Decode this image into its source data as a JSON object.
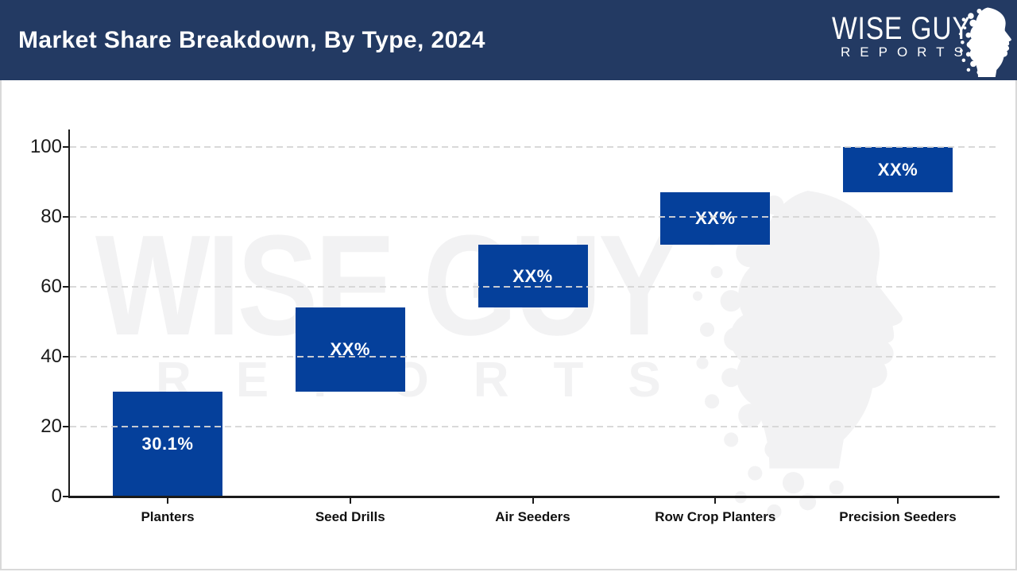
{
  "header": {
    "title": "Market Share Breakdown, By Type, 2024",
    "logo": {
      "brand_line1": "WISE GUY",
      "brand_line2": "REPORTS"
    }
  },
  "watermark": {
    "line1": "WISE GUY",
    "line2": "REPORTS"
  },
  "chart_data": {
    "type": "bar",
    "subtype": "waterfall",
    "title": "Market Share Breakdown, By Type, 2024",
    "categories": [
      "Planters",
      "Seed Drills",
      "Air Seeders",
      "Row Crop Planters",
      "Precision Seeders"
    ],
    "segments": [
      {
        "category": "Planters",
        "start": 0,
        "end": 30.1,
        "label": "30.1%"
      },
      {
        "category": "Seed Drills",
        "start": 30.1,
        "end": 54,
        "label": "XX%"
      },
      {
        "category": "Air Seeders",
        "start": 54,
        "end": 72,
        "label": "XX%"
      },
      {
        "category": "Row Crop Planters",
        "start": 72,
        "end": 87,
        "label": "XX%"
      },
      {
        "category": "Precision Seeders",
        "start": 87,
        "end": 100,
        "label": "XX%"
      }
    ],
    "yticks": [
      0,
      20,
      40,
      60,
      80,
      100
    ],
    "ylim": [
      0,
      105
    ],
    "xlabel": "",
    "ylabel": "",
    "legend": "none",
    "grid": "horizontal-dashed",
    "bar_color": "#05409b",
    "bar_label_color": "#ffffff"
  },
  "colors": {
    "header_bg": "#233a63",
    "bar": "#05409b",
    "grid": "#d9d9d9",
    "axis": "#1a1a1a",
    "watermark": "#f2f2f3",
    "frame": "#d9d9d9"
  }
}
